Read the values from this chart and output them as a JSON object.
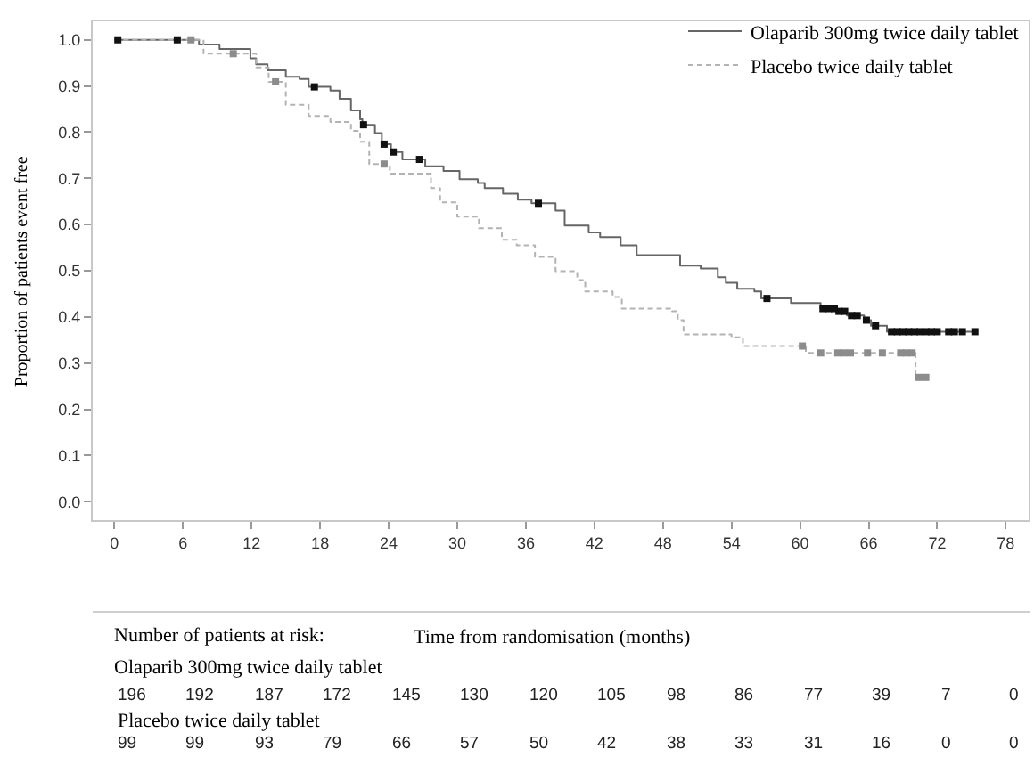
{
  "chart_data": [
    {
      "type": "step",
      "xlabel": "Time from randomisation (months)",
      "ylabel": "Proportion of patients event free",
      "legend": "top right",
      "grid": false,
      "xlim": [
        -1.9,
        80
      ],
      "xticks": [
        0,
        6,
        12,
        18,
        24,
        30,
        36,
        42,
        48,
        54,
        60,
        66,
        72,
        78
      ],
      "ylim": [
        -0.04,
        1.04
      ],
      "yticks": [
        {
          "value": 0,
          "label": "0.0"
        },
        0.1,
        0.2,
        0.3,
        0.4,
        0.5,
        0.6,
        0.7,
        0.8,
        0.9,
        {
          "value": 1,
          "label": "1.0"
        }
      ],
      "series": [
        {
          "name": "Olaparib 300mg twice daily tablet",
          "color": "#666666",
          "line_style": "solid",
          "x": [
            0,
            7.4,
            9.2,
            11.9,
            12.4,
            13.4,
            15.0,
            16.2,
            17.0,
            18.9,
            19.7,
            20.7,
            21.5,
            21.7,
            22.8,
            23.4,
            24.2,
            25.2,
            27.2,
            28.8,
            30.2,
            31.8,
            32.4,
            34.0,
            35.3,
            36.5,
            38.6,
            39.4,
            41.5,
            42.5,
            44.3,
            45.7,
            49.5,
            51.3,
            52.8,
            53.5,
            54.5,
            56.0,
            56.6,
            59.2,
            61.8,
            63.1,
            64.1,
            65.6,
            66.2,
            67.6,
            75.3
          ],
          "values": [
            1.0,
            0.99,
            0.98,
            0.96,
            0.947,
            0.934,
            0.92,
            0.915,
            0.898,
            0.89,
            0.872,
            0.847,
            0.828,
            0.816,
            0.798,
            0.774,
            0.757,
            0.741,
            0.726,
            0.716,
            0.698,
            0.69,
            0.679,
            0.667,
            0.654,
            0.646,
            0.63,
            0.598,
            0.583,
            0.573,
            0.555,
            0.534,
            0.511,
            0.505,
            0.486,
            0.474,
            0.461,
            0.455,
            0.44,
            0.43,
            0.418,
            0.412,
            0.403,
            0.393,
            0.381,
            0.368,
            0.368
          ]
        },
        {
          "name": "Placebo twice daily tablet",
          "color": "#b3b3b3",
          "line_style": "dashed",
          "x": [
            0,
            7.8,
            12.4,
            13.5,
            15.0,
            17.0,
            18.9,
            20.7,
            21.5,
            22.3,
            24.1,
            27.7,
            28.5,
            30.0,
            31.9,
            33.9,
            35.2,
            36.8,
            38.6,
            40.5,
            41.2,
            43.6,
            44.4,
            48.8,
            49.3,
            49.8,
            54.0,
            55.0,
            60.5,
            70.1,
            71.1
          ],
          "values": [
            1.0,
            0.97,
            0.94,
            0.909,
            0.859,
            0.835,
            0.822,
            0.803,
            0.779,
            0.731,
            0.71,
            0.679,
            0.648,
            0.617,
            0.592,
            0.567,
            0.555,
            0.53,
            0.499,
            0.48,
            0.455,
            0.443,
            0.418,
            0.412,
            0.393,
            0.362,
            0.356,
            0.337,
            0.322,
            0.269,
            0.269
          ]
        },
        {
          "type": "scatter",
          "marker": "square",
          "color": "#111111",
          "x": [
            0.3,
            5.5,
            17.5,
            21.8,
            23.6,
            24.4,
            26.7,
            37.1,
            57.1,
            62.0,
            62.5,
            63.0,
            63.4,
            63.9,
            64.5,
            65.0,
            65.8,
            66.6,
            68.0,
            68.5,
            69.0,
            69.5,
            70.0,
            70.5,
            71.0,
            71.5,
            72.0,
            73.0,
            73.5,
            74.2,
            75.3
          ],
          "values": [
            1.0,
            1.0,
            0.898,
            0.816,
            0.774,
            0.757,
            0.741,
            0.646,
            0.44,
            0.418,
            0.418,
            0.418,
            0.412,
            0.412,
            0.403,
            0.403,
            0.393,
            0.381,
            0.368,
            0.368,
            0.368,
            0.368,
            0.368,
            0.368,
            0.368,
            0.368,
            0.368,
            0.368,
            0.368,
            0.368,
            0.368
          ]
        },
        {
          "type": "scatter",
          "marker": "square",
          "color": "#8c8c8c",
          "x": [
            6.7,
            10.4,
            14.1,
            23.6,
            60.2,
            61.8,
            63.3,
            63.8,
            64.4,
            65.9,
            67.2,
            68.8,
            69.3,
            69.8,
            70.4,
            71.0
          ],
          "values": [
            1.0,
            0.97,
            0.909,
            0.731,
            0.337,
            0.322,
            0.322,
            0.322,
            0.322,
            0.322,
            0.322,
            0.322,
            0.322,
            0.322,
            0.269,
            0.269
          ]
        }
      ]
    },
    {
      "type": "other",
      "title": "Number of patients at risk:",
      "annotations": [
        "Olaparib 300mg twice daily tablet",
        "196",
        "192",
        "187",
        "172",
        "145",
        "130",
        "120",
        "105",
        "98",
        "86",
        "77",
        "39",
        "7",
        "0",
        "Placebo twice daily tablet",
        "99",
        "99",
        "93",
        "79",
        "66",
        "57",
        "50",
        "42",
        "38",
        "33",
        "31",
        "16",
        "0",
        "0"
      ]
    }
  ]
}
